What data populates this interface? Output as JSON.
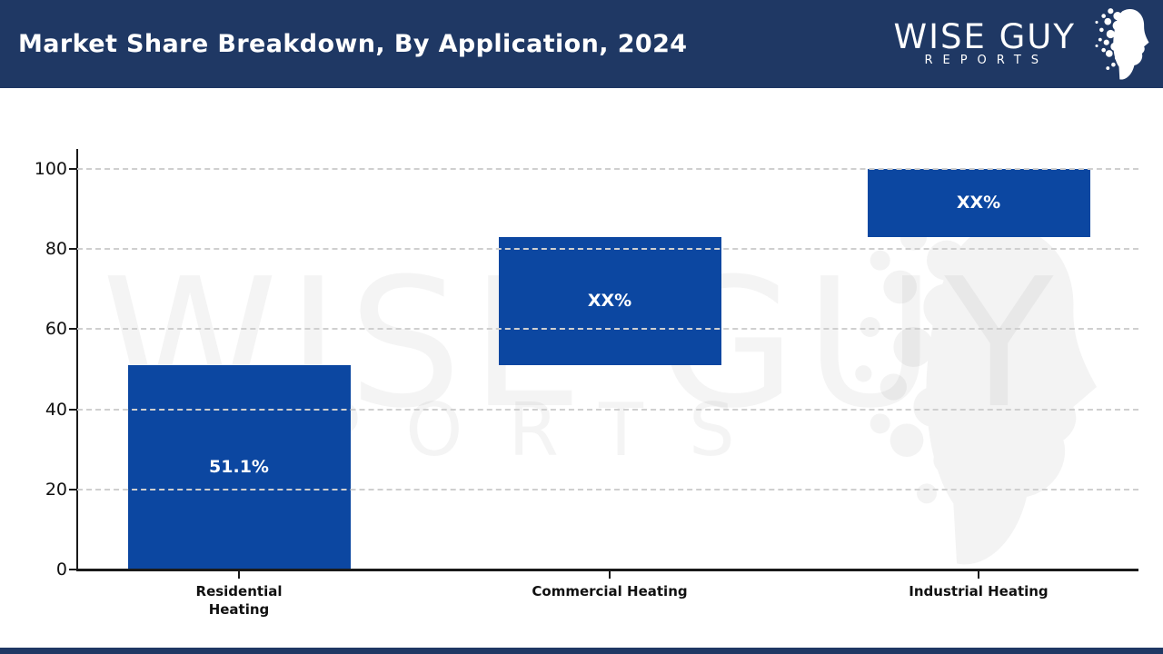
{
  "header": {
    "title": "Market Share Breakdown, By Application, 2024",
    "background_color": "#1f3864",
    "logo": {
      "wordmark": "WISE GUY",
      "subtext": "REPORTS"
    }
  },
  "watermark": {
    "wordmark": "WISE GUY",
    "subtext": "REPORTS"
  },
  "footer": {
    "background_color": "#1f3864"
  },
  "chart_data": {
    "type": "bar",
    "subtype": "floating-segment-waterfall",
    "title": "Market Share Breakdown, By Application, 2024",
    "categories": [
      "Residential Heating",
      "Commercial Heating",
      "Industrial Heating"
    ],
    "tick_labels": [
      "Residential\nHeating",
      "Commercial Heating",
      "Industrial Heating"
    ],
    "segments": [
      {
        "category": "Residential Heating",
        "start": 0,
        "end": 51.1,
        "value": 51.1,
        "label": "51.1%"
      },
      {
        "category": "Commercial Heating",
        "start": 51.1,
        "end": 83,
        "value": 31.9,
        "label": "XX%"
      },
      {
        "category": "Industrial Heating",
        "start": 83,
        "end": 100,
        "value": 17,
        "label": "XX%"
      }
    ],
    "xlabel": "",
    "ylabel": "",
    "ylim": [
      0,
      100
    ],
    "yticks": [
      0,
      20,
      40,
      60,
      80,
      100
    ],
    "grid": "horizontal-dashed",
    "legend": "none",
    "bar_color": "#0c47a1",
    "bar_label_color": "#ffffff"
  }
}
